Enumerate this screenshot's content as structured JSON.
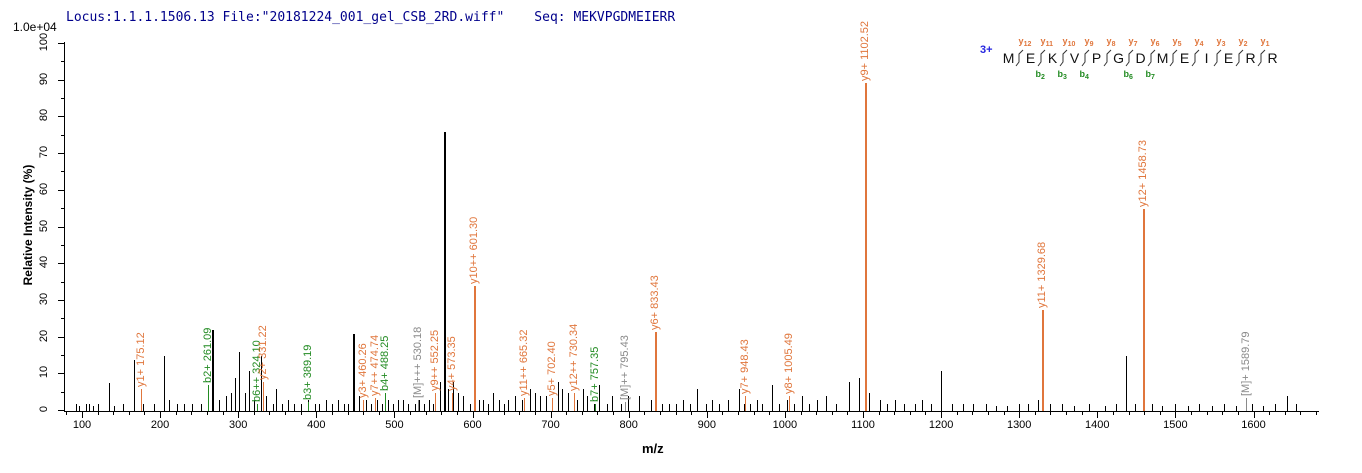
{
  "header": {
    "locus_file": "Locus:1.1.1.1506.13 File:\"20181224_001_gel_CSB_2RD.wiff\"",
    "seq_label": "Seq:",
    "seq_value": "MEKVPGDMEIERR"
  },
  "axes": {
    "y_scale_note": "1.0e+04",
    "y_label": "Relative  Intensity (%)",
    "x_label": "m/z",
    "x_major_min": 100,
    "x_major_max": 1600,
    "x_major_step": 100,
    "x_minor_min": 80,
    "x_minor_max": 1680,
    "x_minor_step": 20,
    "y_max": 100,
    "y_major_step": 10,
    "y_minor_step": 5
  },
  "colors": {
    "y_ion": "#E0763C",
    "b_ion": "#228B22",
    "precursor": "#8A8A8A",
    "peak": "#000000",
    "header_text": "#00008B",
    "charge": "#2525E0"
  },
  "peptide": {
    "charge": "3+",
    "residues": [
      "M",
      "E",
      "K",
      "V",
      "P",
      "G",
      "D",
      "M",
      "E",
      "I",
      "E",
      "R",
      "R"
    ],
    "y_ions": [
      "y12",
      "y11",
      "y10",
      "y9",
      "y8",
      "y7",
      "y6",
      "y5",
      "y4",
      "y3",
      "y2",
      "y1"
    ],
    "b_ions": {
      "2": "b2",
      "3": "b3",
      "4": "b4",
      "6": "b6",
      "7": "b7"
    }
  },
  "chart_data": {
    "type": "bar",
    "subtype": "ms2_fragment_spectrum",
    "title": "",
    "xlabel": "m/z",
    "ylabel": "Relative Intensity (%)",
    "xlim": [
      78,
      1683
    ],
    "ylim": [
      0,
      100
    ],
    "grid": false,
    "labeled_peaks": [
      {
        "label": "y1+ 175.12",
        "mz": 175.12,
        "pct": 6,
        "type": "y"
      },
      {
        "label": "b2+ 261.09",
        "mz": 261.09,
        "pct": 7,
        "type": "b"
      },
      {
        "label": "b6++ 324.10",
        "mz": 324.1,
        "pct": 2,
        "type": "b"
      },
      {
        "label": "y2+ 331.22",
        "mz": 331.22,
        "pct": 8,
        "type": "y"
      },
      {
        "label": "b3+ 389.19",
        "mz": 389.19,
        "pct": 2.5,
        "type": "b"
      },
      {
        "label": "y3+ 460.26",
        "mz": 460.26,
        "pct": 3,
        "type": "y"
      },
      {
        "label": "y7++ 474.74",
        "mz": 474.74,
        "pct": 3.5,
        "type": "y"
      },
      {
        "label": "b4+ 488.25",
        "mz": 488.25,
        "pct": 5,
        "type": "b"
      },
      {
        "label": "[M]+++ 530.18",
        "mz": 530.18,
        "pct": 3,
        "type": "M"
      },
      {
        "label": "y9++ 552.25",
        "mz": 552.25,
        "pct": 5,
        "type": "y"
      },
      {
        "label": "y4+ 573.35",
        "mz": 573.35,
        "pct": 5,
        "type": "y"
      },
      {
        "label": "y10++ 601.30",
        "mz": 601.3,
        "pct": 34,
        "type": "y"
      },
      {
        "label": "y11++ 665.32",
        "mz": 665.32,
        "pct": 3.5,
        "type": "y"
      },
      {
        "label": "y5+ 702.40",
        "mz": 702.4,
        "pct": 3.5,
        "type": "y"
      },
      {
        "label": "y12++ 730.34",
        "mz": 730.34,
        "pct": 5,
        "type": "y"
      },
      {
        "label": "b7+ 757.35",
        "mz": 757.35,
        "pct": 2,
        "type": "b"
      },
      {
        "label": "[M]++ 795.43",
        "mz": 795.43,
        "pct": 2.5,
        "type": "M"
      },
      {
        "label": "y6+ 833.43",
        "mz": 833.43,
        "pct": 21.5,
        "type": "y"
      },
      {
        "label": "y7+ 948.43",
        "mz": 948.43,
        "pct": 4,
        "type": "y"
      },
      {
        "label": "y8+ 1005.49",
        "mz": 1005.49,
        "pct": 4,
        "type": "y"
      },
      {
        "label": "y9+ 1102.52",
        "mz": 1102.52,
        "pct": 89.5,
        "type": "y"
      },
      {
        "label": "y11+ 1329.68",
        "mz": 1329.68,
        "pct": 27.5,
        "type": "y"
      },
      {
        "label": "y12+ 1458.73",
        "mz": 1458.73,
        "pct": 55,
        "type": "y"
      },
      {
        "label": "[M]+ 1589.79",
        "mz": 1589.79,
        "pct": 3.5,
        "type": "M"
      }
    ],
    "background_peaks": [
      [
        92,
        2
      ],
      [
        96,
        1.5
      ],
      [
        105,
        2
      ],
      [
        109,
        2
      ],
      [
        114,
        1.5
      ],
      [
        120,
        2
      ],
      [
        134,
        7.5
      ],
      [
        141,
        1.5
      ],
      [
        152,
        2
      ],
      [
        166,
        14
      ],
      [
        178,
        2
      ],
      [
        192,
        2
      ],
      [
        205,
        15
      ],
      [
        212,
        3
      ],
      [
        221,
        2
      ],
      [
        230,
        2
      ],
      [
        241,
        2
      ],
      [
        252,
        2
      ],
      [
        266,
        22
      ],
      [
        275,
        3
      ],
      [
        284,
        4
      ],
      [
        291,
        5
      ],
      [
        296,
        9
      ],
      [
        301,
        16
      ],
      [
        309,
        5
      ],
      [
        314,
        11
      ],
      [
        320,
        3
      ],
      [
        329,
        15
      ],
      [
        335,
        4
      ],
      [
        344,
        2
      ],
      [
        349,
        6
      ],
      [
        356,
        2
      ],
      [
        364,
        3
      ],
      [
        372,
        2
      ],
      [
        380,
        2
      ],
      [
        390,
        3
      ],
      [
        398,
        2
      ],
      [
        404,
        2
      ],
      [
        412,
        3
      ],
      [
        420,
        2
      ],
      [
        428,
        3
      ],
      [
        435,
        2
      ],
      [
        440,
        2
      ],
      [
        447,
        21
      ],
      [
        455,
        4
      ],
      [
        463,
        3
      ],
      [
        470,
        2
      ],
      [
        478,
        3
      ],
      [
        484,
        2
      ],
      [
        492,
        3
      ],
      [
        498,
        2
      ],
      [
        505,
        3
      ],
      [
        511,
        3
      ],
      [
        518,
        2
      ],
      [
        526,
        2
      ],
      [
        532,
        3
      ],
      [
        538,
        2
      ],
      [
        544,
        3
      ],
      [
        550,
        2
      ],
      [
        558,
        8
      ],
      [
        564,
        76
      ],
      [
        568,
        6
      ],
      [
        575,
        8
      ],
      [
        581,
        5
      ],
      [
        588,
        4
      ],
      [
        597,
        2
      ],
      [
        608,
        3
      ],
      [
        613,
        3
      ],
      [
        620,
        2
      ],
      [
        626,
        5
      ],
      [
        634,
        3
      ],
      [
        640,
        2
      ],
      [
        645,
        3
      ],
      [
        654,
        4
      ],
      [
        664,
        3
      ],
      [
        673,
        6
      ],
      [
        680,
        5
      ],
      [
        686,
        4
      ],
      [
        694,
        4
      ],
      [
        709,
        8
      ],
      [
        715,
        6
      ],
      [
        722,
        5
      ],
      [
        734,
        3
      ],
      [
        741,
        6
      ],
      [
        747,
        4
      ],
      [
        755,
        2
      ],
      [
        762,
        7
      ],
      [
        772,
        2
      ],
      [
        779,
        4
      ],
      [
        790,
        2
      ],
      [
        799,
        4
      ],
      [
        813,
        4
      ],
      [
        828,
        3
      ],
      [
        843,
        2
      ],
      [
        852,
        2
      ],
      [
        861,
        2
      ],
      [
        869,
        3
      ],
      [
        879,
        2
      ],
      [
        888,
        6
      ],
      [
        899,
        2
      ],
      [
        907,
        3
      ],
      [
        916,
        2
      ],
      [
        927,
        3
      ],
      [
        941,
        6
      ],
      [
        947,
        2
      ],
      [
        955,
        2
      ],
      [
        964,
        3
      ],
      [
        971,
        2
      ],
      [
        984,
        7
      ],
      [
        993,
        2
      ],
      [
        1003,
        3
      ],
      [
        1012,
        2
      ],
      [
        1022,
        4
      ],
      [
        1031,
        2
      ],
      [
        1041,
        3
      ],
      [
        1053,
        4
      ],
      [
        1066,
        2
      ],
      [
        1082,
        8
      ],
      [
        1095,
        9
      ],
      [
        1108,
        5
      ],
      [
        1122,
        3
      ],
      [
        1131,
        2
      ],
      [
        1141,
        3
      ],
      [
        1153,
        2
      ],
      [
        1166,
        2
      ],
      [
        1175,
        3
      ],
      [
        1187,
        2
      ],
      [
        1200,
        11
      ],
      [
        1214,
        2
      ],
      [
        1228,
        2
      ],
      [
        1241,
        2
      ],
      [
        1258,
        2
      ],
      [
        1270,
        1.5
      ],
      [
        1285,
        1.5
      ],
      [
        1300,
        2
      ],
      [
        1311,
        2
      ],
      [
        1324,
        3
      ],
      [
        1340,
        2
      ],
      [
        1355,
        2
      ],
      [
        1370,
        1.5
      ],
      [
        1390,
        2
      ],
      [
        1410,
        1.5
      ],
      [
        1424,
        2
      ],
      [
        1437,
        15
      ],
      [
        1448,
        2
      ],
      [
        1470,
        2
      ],
      [
        1483,
        1.5
      ],
      [
        1500,
        2
      ],
      [
        1516,
        1.5
      ],
      [
        1530,
        2
      ],
      [
        1547,
        1.5
      ],
      [
        1562,
        2
      ],
      [
        1577,
        1.5
      ],
      [
        1598,
        2
      ],
      [
        1612,
        1.5
      ],
      [
        1628,
        2
      ],
      [
        1643,
        4
      ],
      [
        1655,
        2
      ]
    ]
  }
}
